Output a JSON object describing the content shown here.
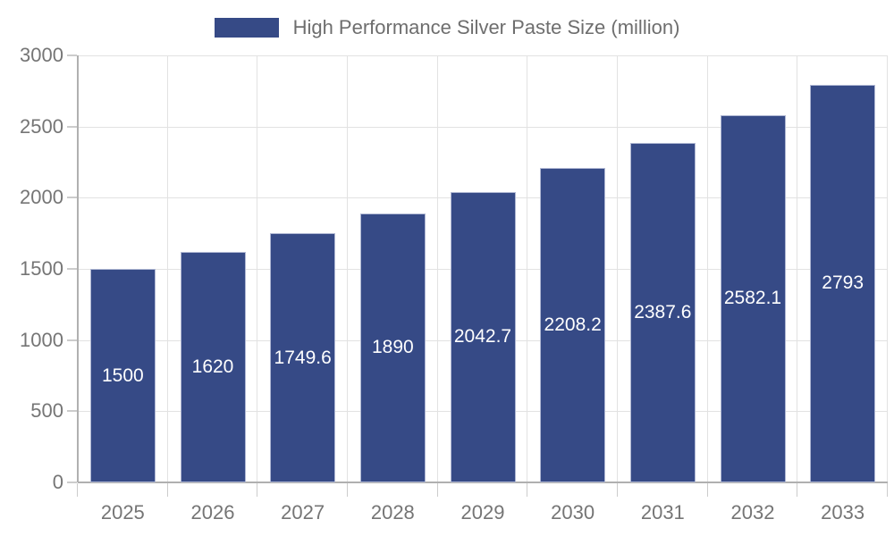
{
  "chart_data": {
    "type": "bar",
    "title": "",
    "legend": "High Performance Silver Paste Size (million)",
    "legend_position": "top-center",
    "categories": [
      "2025",
      "2026",
      "2027",
      "2028",
      "2029",
      "2030",
      "2031",
      "2032",
      "2033"
    ],
    "values": [
      1500,
      1620,
      1749.6,
      1890,
      2042.7,
      2208.2,
      2387.6,
      2582.1,
      2793
    ],
    "value_labels": [
      "1500",
      "1620",
      "1749.6",
      "1890",
      "2042.7",
      "2208.2",
      "2387.6",
      "2582.1",
      "2793"
    ],
    "xlabel": "",
    "ylabel": "",
    "ylim": [
      0,
      3000
    ],
    "yticks": [
      0,
      500,
      1000,
      1500,
      2000,
      2500,
      3000
    ],
    "ytick_labels": [
      "0",
      "500",
      "1000",
      "1500",
      "2000",
      "2500",
      "3000"
    ],
    "grid": "on",
    "colors": {
      "bar_fill": "#364a86",
      "bar_border": "#c4cae0",
      "value_label_text": "#ffffff",
      "axis_label_text": "#757575",
      "legend_text": "#6e6e6e",
      "gridline": "#e2e2e2",
      "axis_line": "#b0b0b0",
      "tick": "#cccccc",
      "background": "#ffffff"
    }
  }
}
